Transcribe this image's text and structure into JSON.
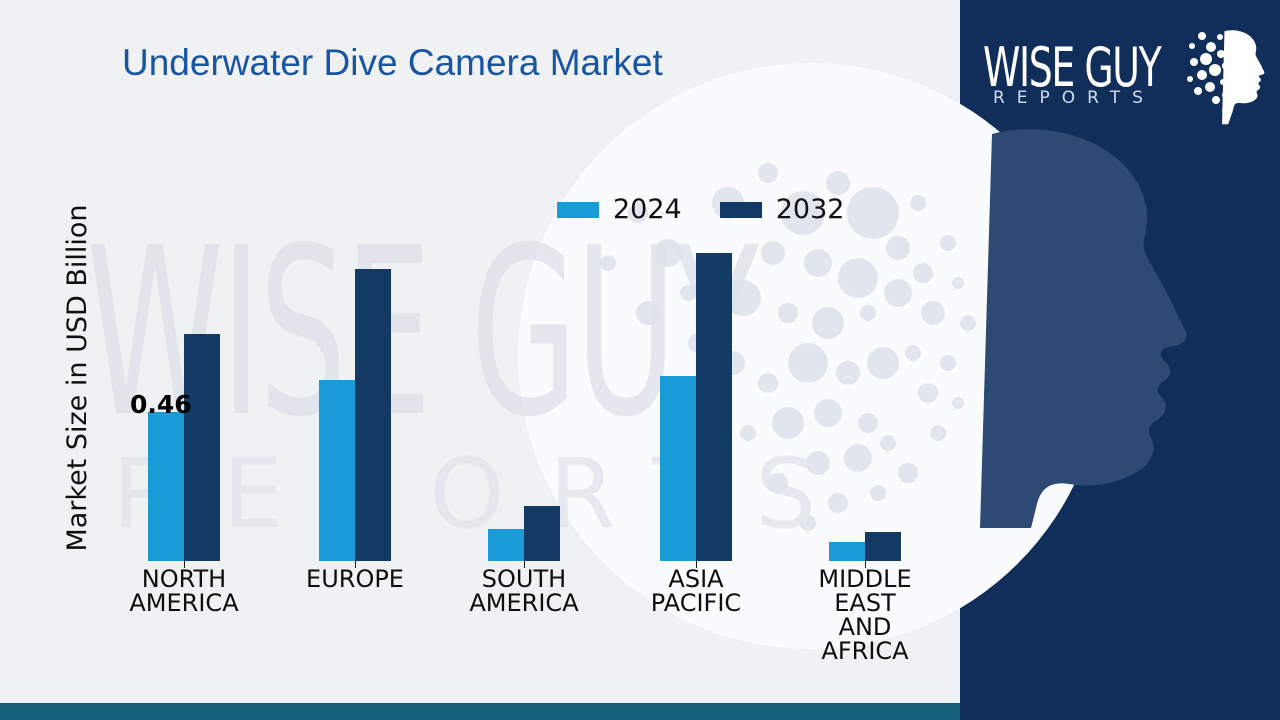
{
  "header": {
    "title": "Underwater Dive Camera Market"
  },
  "brand": {
    "name": "WISE GUY",
    "sub": "REPORTS"
  },
  "watermark": {
    "name": "WISE GUY",
    "sub": "REPORTS"
  },
  "colors": {
    "background": "#f0f1f2",
    "title_blue": "#1a55a2",
    "series_2024_blue": "#1a9bd7",
    "series_2032_navy": "#123a64",
    "panel_navy": "#112e5a",
    "teal_footer": "#156079",
    "circle_white": "#fafbfd",
    "watermark_gray": "#dde1e9"
  },
  "chart_data": {
    "type": "bar",
    "title": "Underwater Dive Camera Market",
    "xlabel": "",
    "ylabel": "Market Size in USD Billion",
    "unit": "USD Billion",
    "categories": [
      "NORTH AMERICA",
      "EUROPE",
      "SOUTH AMERICA",
      "ASIA PACIFIC",
      "MIDDLE EAST AND AFRICA"
    ],
    "category_lines": [
      [
        "NORTH",
        "AMERICA"
      ],
      [
        "EUROPE"
      ],
      [
        "SOUTH",
        "AMERICA"
      ],
      [
        "ASIA",
        "PACIFIC"
      ],
      [
        "MIDDLE",
        "EAST",
        "AND",
        "AFRICA"
      ]
    ],
    "series": [
      {
        "name": "2024",
        "color": "#1a9bd7",
        "values": [
          0.46,
          0.56,
          0.1,
          0.57,
          0.06
        ]
      },
      {
        "name": "2032",
        "color": "#123a64",
        "values": [
          0.7,
          0.9,
          0.17,
          0.95,
          0.09
        ]
      }
    ],
    "visible_data_labels": [
      {
        "series": "2024",
        "category": "NORTH AMERICA",
        "label": "0.46"
      }
    ],
    "ylim": [
      0,
      1.0
    ],
    "grid": false,
    "legend_position": "top-center"
  }
}
